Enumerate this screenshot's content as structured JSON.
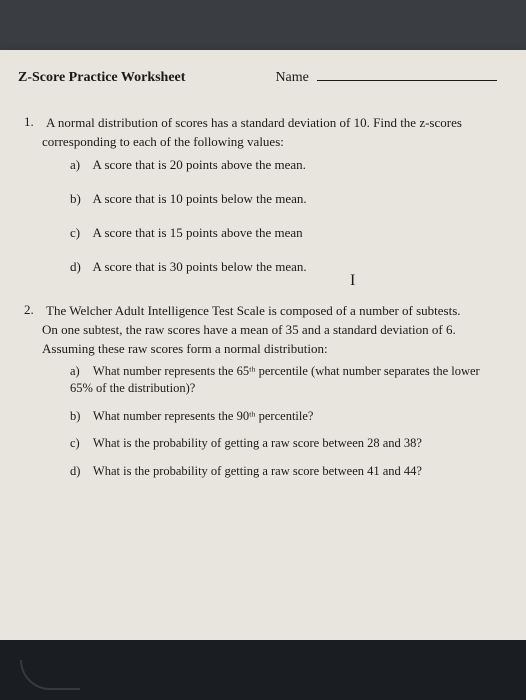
{
  "header": {
    "title": "Z-Score Practice Worksheet",
    "name_label": "Name"
  },
  "questions": [
    {
      "number": "1.",
      "stem_lines": [
        "A normal distribution of scores has a standard deviation of 10.  Find the z-scores",
        "corresponding to each of the following values:"
      ],
      "subs": [
        {
          "letter": "a)",
          "text": "A score that is 20 points above the mean."
        },
        {
          "letter": "b)",
          "text": "A score that is 10 points below the mean."
        },
        {
          "letter": "c)",
          "text": "A score that is 15 points above the mean"
        },
        {
          "letter": "d)",
          "text": "A score that is 30 points below the mean."
        }
      ]
    },
    {
      "number": "2.",
      "stem_lines": [
        "The Welcher Adult Intelligence Test Scale is composed of a number of subtests.",
        "On one subtest, the raw scores have a mean of 35 and a standard deviation of 6.",
        "Assuming these raw scores form a normal distribution:"
      ],
      "subs": [
        {
          "letter": "a)",
          "text": "What number represents the 65ᵗʰ percentile (what number separates the lower 65% of the distribution)?"
        },
        {
          "letter": "b)",
          "text": "What number represents the 90ᵗʰ percentile?"
        },
        {
          "letter": "c)",
          "text": "What is the probability of getting a raw score between 28 and 38?"
        },
        {
          "letter": "d)",
          "text": "What is the probability of getting a raw score between 41 and 44?"
        }
      ]
    }
  ],
  "cursor": "I",
  "colors": {
    "page_bg": "#3a3d42",
    "paper_bg": "#e8e5de",
    "text": "#1a1a1a",
    "bottom": "#1a1d22"
  }
}
